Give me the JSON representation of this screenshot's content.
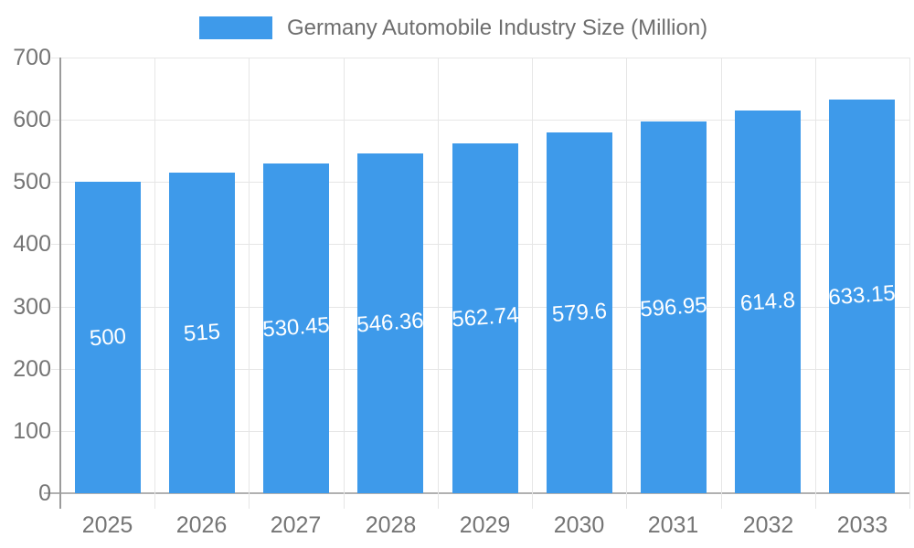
{
  "chart_data": {
    "type": "bar",
    "title": "Germany Automobile Industry Size (Million)",
    "categories": [
      "2025",
      "2026",
      "2027",
      "2028",
      "2029",
      "2030",
      "2031",
      "2032",
      "2033"
    ],
    "values": [
      500,
      515,
      530.45,
      546.36,
      562.74,
      579.6,
      596.95,
      614.8,
      633.15
    ],
    "value_labels": [
      "500",
      "515",
      "530.45",
      "546.36",
      "562.74",
      "579.6",
      "596.95",
      "614.8",
      "633.15"
    ],
    "ylim": [
      0,
      700
    ],
    "y_ticks": [
      0,
      100,
      200,
      300,
      400,
      500,
      600,
      700
    ],
    "grid": true,
    "legend_position": "top-center",
    "colors": {
      "bar": "#3E9AEA",
      "grid": "#e6e6e6",
      "axis": "#9b9b9b",
      "baseline": "#b1b1b1",
      "tick_text": "#757575",
      "title_text": "#6e6e6e",
      "value_text": "#ffffff",
      "background": "#ffffff"
    }
  }
}
